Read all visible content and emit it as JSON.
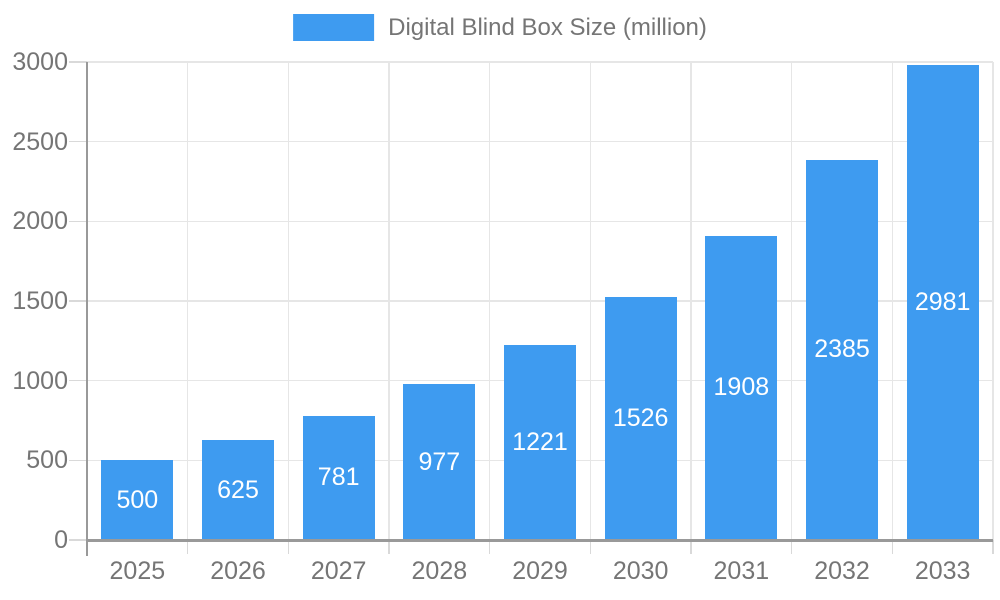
{
  "legend": {
    "label": "Digital Blind Box Size (million)"
  },
  "colors": {
    "bar": "#3E9BF0",
    "bar_label": "#ffffff",
    "axis": "#999999",
    "gridline": "#e6e6e6",
    "tick": "#d9d9d9",
    "label_text": "#757575",
    "background": "#ffffff"
  },
  "chart_data": {
    "type": "bar",
    "title": "",
    "series_name": "Digital Blind Box Size (million)",
    "categories": [
      "2025",
      "2026",
      "2027",
      "2028",
      "2029",
      "2030",
      "2031",
      "2032",
      "2033"
    ],
    "values": [
      500,
      625,
      781,
      977,
      1221,
      1526,
      1908,
      2385,
      2981
    ],
    "xlabel": "",
    "ylabel": "",
    "ylim": [
      0,
      3000
    ],
    "yticks": [
      0,
      500,
      1000,
      1500,
      2000,
      2500,
      3000
    ],
    "grid": true,
    "legend_position": "top",
    "bar_value_labels_visible": true
  }
}
